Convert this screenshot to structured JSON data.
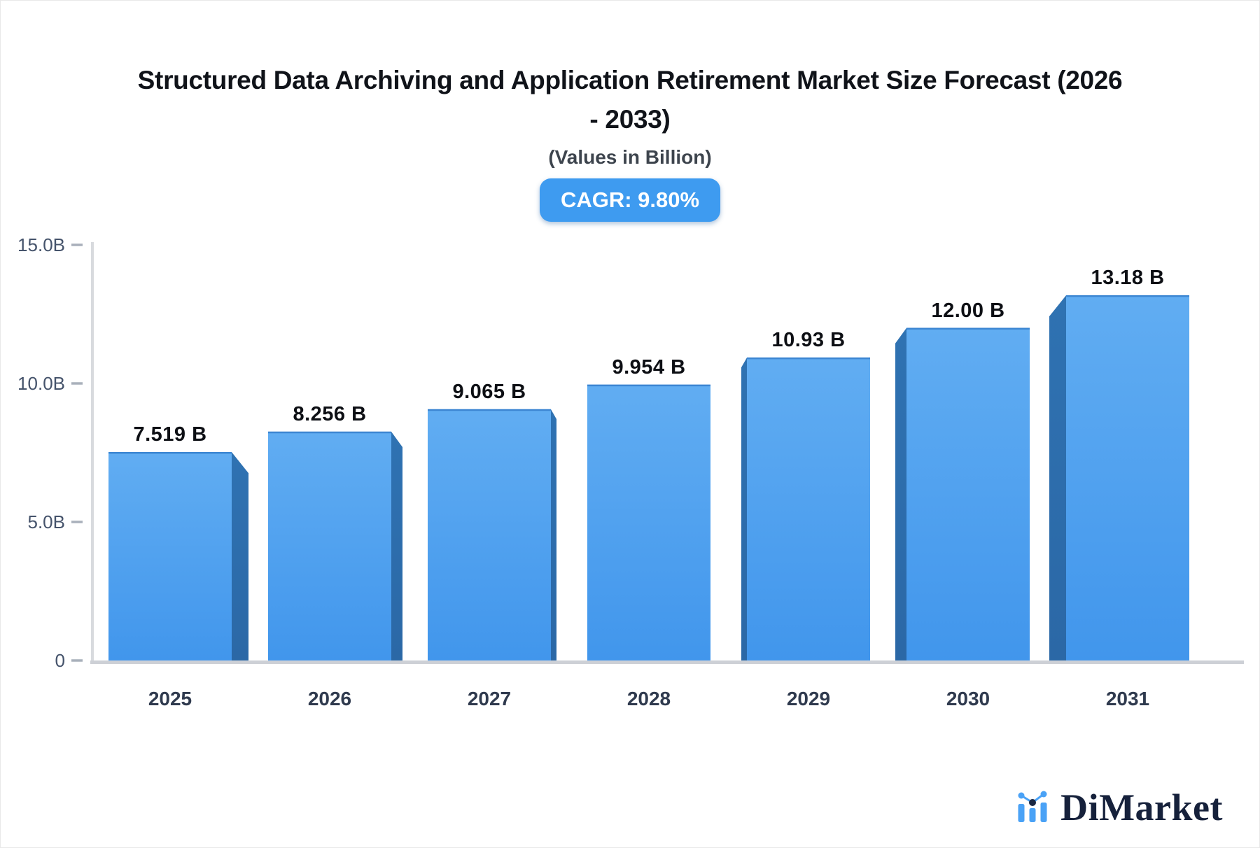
{
  "header": {
    "title_line1": "Structured Data Archiving and Application Retirement Market Size Forecast (2026",
    "title_line2": "- 2033)",
    "subtitle": "(Values in Billion)",
    "badge": "CAGR: 9.80%"
  },
  "footer": {
    "logo_text": "DiMarket",
    "logo_icon": "mini-bar-chart-icon"
  },
  "colors": {
    "badge_bg": "#3e9bf0",
    "bar_face_top": "#61adf2",
    "bar_face_bottom": "#4196ec",
    "bar_side_top": "#2f72b2",
    "bar_side_bottom": "#2b68a6",
    "bar_top_edge": "#3c86d2",
    "axis_line": "#d8dade",
    "baseline": "#cdd0d6",
    "tick": "#a9b0bb",
    "y_label": "#45536b",
    "x_label": "#2f3a4e",
    "value_label": "#0d0f14",
    "logo_navy": "#1b2742",
    "logo_blue": "#4aa2f6"
  },
  "chart_data": {
    "type": "bar",
    "title": "Structured Data Archiving and Application Retirement Market Size Forecast (2026 - 2033)",
    "subtitle": "(Values in Billion)",
    "annotation": "CAGR: 9.80%",
    "categories": [
      "2025",
      "2026",
      "2027",
      "2028",
      "2029",
      "2030",
      "2031"
    ],
    "values": [
      7.519,
      8.256,
      9.065,
      9.954,
      10.93,
      12.0,
      13.18
    ],
    "value_labels": [
      "7.519 B",
      "8.256 B",
      "9.065 B",
      "9.954 B",
      "10.93 B",
      "12.00 B",
      "13.18 B"
    ],
    "series_name": "Market Size (Billion)",
    "xlabel": "",
    "ylabel": "",
    "ylim": [
      0,
      15
    ],
    "y_ticks": [
      {
        "v": 0,
        "label": "0"
      },
      {
        "v": 5,
        "label": "5.0B"
      },
      {
        "v": 10,
        "label": "10.0B"
      },
      {
        "v": 15,
        "label": "15.0B"
      }
    ],
    "grid": false,
    "legend": false,
    "style": "3d-perspective-columns"
  }
}
